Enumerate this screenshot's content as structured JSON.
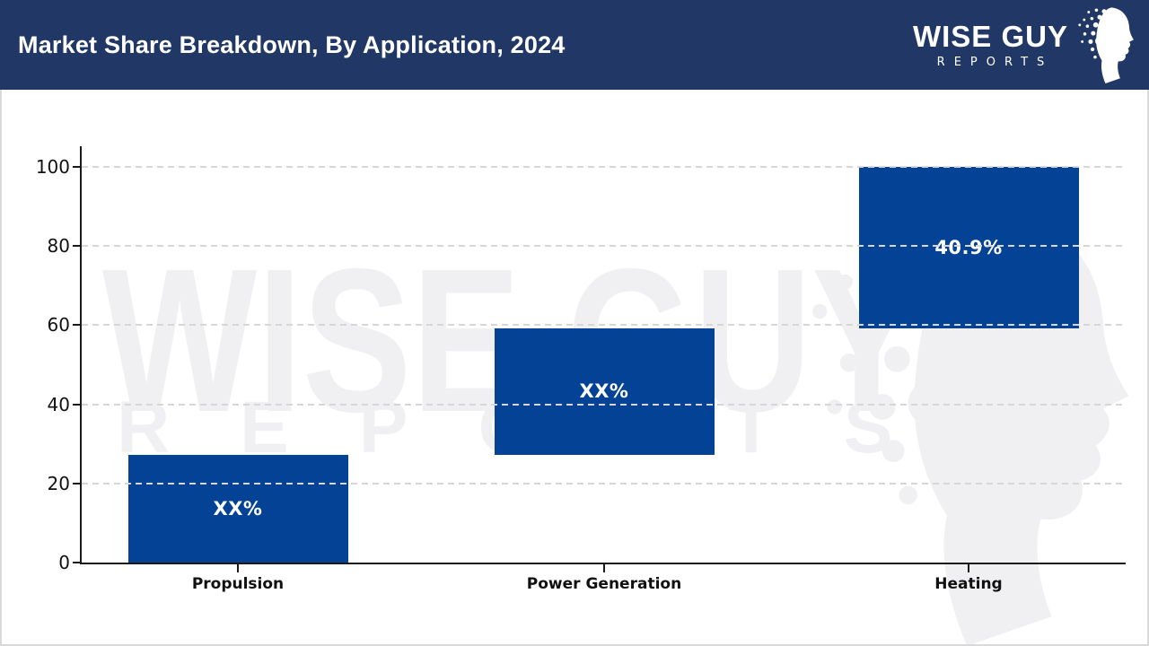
{
  "header": {
    "title": "Market Share Breakdown, By Application, 2024",
    "logo": {
      "name": "WISE GUY",
      "subtitle": "REPORTS"
    }
  },
  "watermark": {
    "name": "WISE GUY",
    "subtitle": "REPORTS"
  },
  "colors": {
    "header_bg": "#213765",
    "bar": "#034294",
    "grid": "#d6d6d6",
    "axis": "#1a1a1a",
    "watermark": "#f0f0f2",
    "border": "#d9d9d9",
    "bar_label": "#ffffff",
    "title_text": "#ffffff"
  },
  "chart_data": {
    "type": "bar",
    "subtype": "waterfall",
    "title": "Market Share Breakdown, By Application, 2024",
    "categories": [
      "Propulsion",
      "Power Generation",
      "Heating"
    ],
    "segments": [
      {
        "category": "Propulsion",
        "start": 0,
        "end": 27.3,
        "label": "XX%"
      },
      {
        "category": "Power Generation",
        "start": 27.3,
        "end": 59.1,
        "label": "XX%"
      },
      {
        "category": "Heating",
        "start": 59.1,
        "end": 100,
        "label": "40.9%"
      }
    ],
    "units": "%",
    "xlabel": "",
    "ylabel": "",
    "y_ticks": [
      0,
      20,
      40,
      60,
      80,
      100
    ],
    "ylim": [
      0,
      105
    ],
    "grid": "dashed-horizontal",
    "grid_above_bars": true,
    "legend": "none"
  }
}
